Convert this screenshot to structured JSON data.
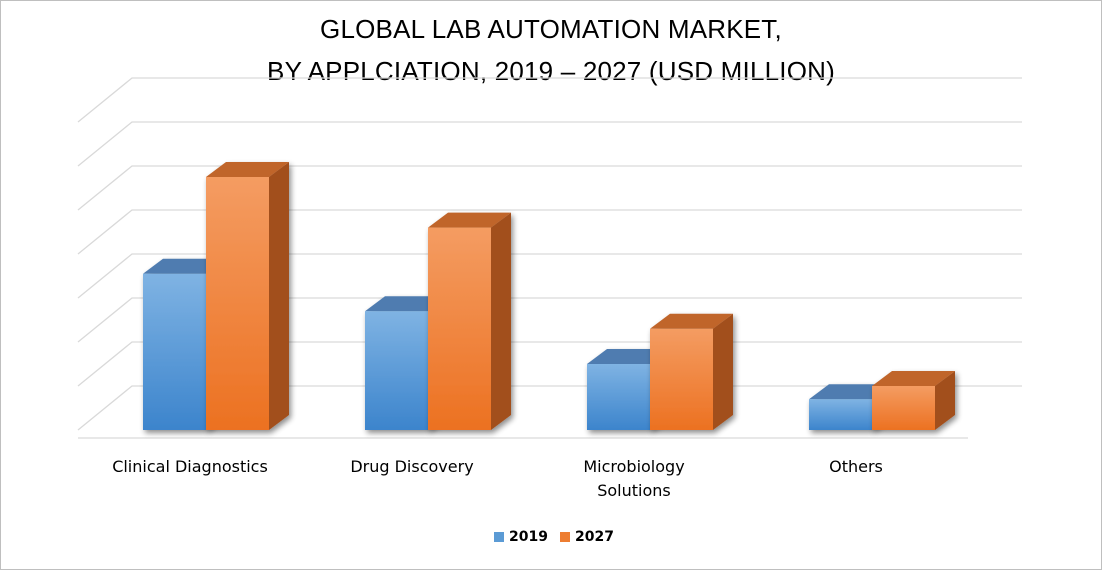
{
  "chart_data": {
    "type": "bar",
    "title_line1": "GLOBAL LAB AUTOMATION MARKET,",
    "title_line2": "BY APPLCIATION, 2019 – 2027 (USD MILLION)",
    "categories": [
      "Clinical Diagnostics",
      "Drug Discovery",
      "Microbiology Solutions",
      "Others"
    ],
    "category_lines": [
      [
        "Clinical Diagnostics"
      ],
      [
        "Drug Discovery"
      ],
      [
        "Microbiology",
        "Solutions"
      ],
      [
        "Others"
      ]
    ],
    "series": [
      {
        "name": "2019",
        "values": [
          3.55,
          2.7,
          1.5,
          0.7
        ]
      },
      {
        "name": "2027",
        "values": [
          5.75,
          4.6,
          2.3,
          1.0
        ]
      }
    ],
    "ylim": [
      0,
      7
    ],
    "grid": true,
    "legend_position": "bottom",
    "colors": {
      "2019": "#5B9BD5",
      "2027": "#ED7D31"
    }
  }
}
